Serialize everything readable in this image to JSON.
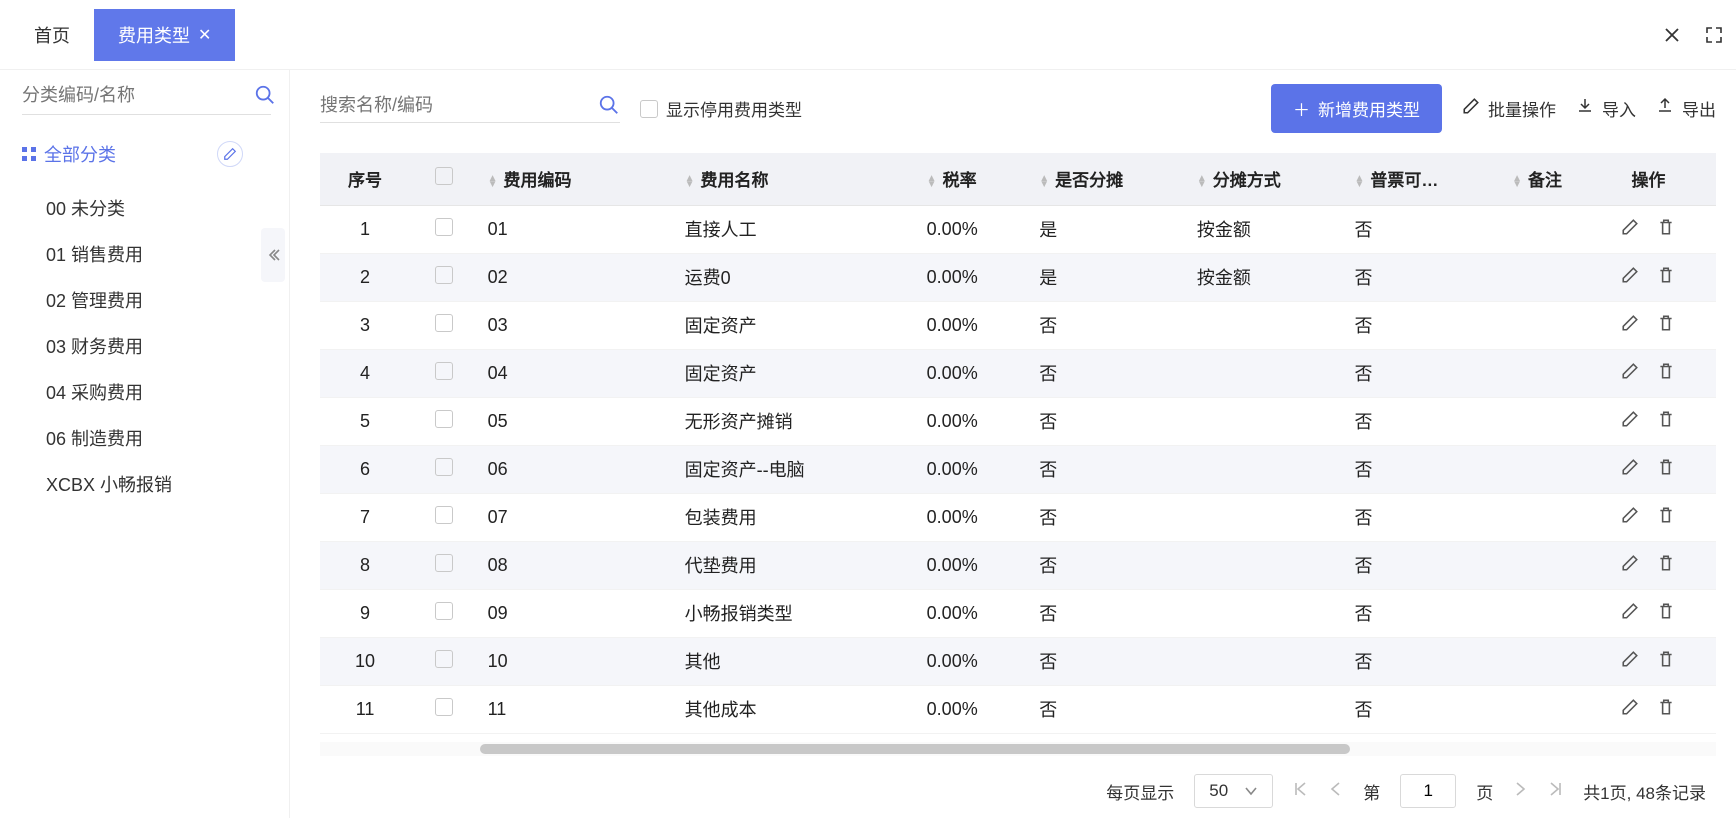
{
  "tabs": {
    "home": "首页",
    "active": "费用类型"
  },
  "sidebar": {
    "search_placeholder": "分类编码/名称",
    "root": "全部分类",
    "items": [
      {
        "label": "00 未分类"
      },
      {
        "label": "01 销售费用"
      },
      {
        "label": "02 管理费用"
      },
      {
        "label": "03 财务费用"
      },
      {
        "label": "04 采购费用"
      },
      {
        "label": "06 制造费用"
      },
      {
        "label": "XCBX 小畅报销"
      }
    ]
  },
  "toolbar": {
    "search_placeholder": "搜索名称/编码",
    "show_disabled": "显示停用费用类型",
    "new_btn": "新增费用类型",
    "batch": "批量操作",
    "import": "导入",
    "export": "导出"
  },
  "table": {
    "cols": {
      "seq": "序号",
      "code": "费用编码",
      "name": "费用名称",
      "rate": "税率",
      "share": "是否分摊",
      "method": "分摊方式",
      "invoice": "普票可…",
      "remark": "备注",
      "op": "操作"
    },
    "rows": [
      {
        "seq": "1",
        "code": "01",
        "name": "直接人工",
        "rate": "0.00%",
        "share": "是",
        "method": "按金额",
        "invoice": "否"
      },
      {
        "seq": "2",
        "code": "02",
        "name": "运费0",
        "rate": "0.00%",
        "share": "是",
        "method": "按金额",
        "invoice": "否"
      },
      {
        "seq": "3",
        "code": "03",
        "name": "固定资产",
        "rate": "0.00%",
        "share": "否",
        "method": "",
        "invoice": "否"
      },
      {
        "seq": "4",
        "code": "04",
        "name": "固定资产",
        "rate": "0.00%",
        "share": "否",
        "method": "",
        "invoice": "否"
      },
      {
        "seq": "5",
        "code": "05",
        "name": "无形资产摊销",
        "rate": "0.00%",
        "share": "否",
        "method": "",
        "invoice": "否"
      },
      {
        "seq": "6",
        "code": "06",
        "name": "固定资产--电脑",
        "rate": "0.00%",
        "share": "否",
        "method": "",
        "invoice": "否"
      },
      {
        "seq": "7",
        "code": "07",
        "name": "包装费用",
        "rate": "0.00%",
        "share": "否",
        "method": "",
        "invoice": "否"
      },
      {
        "seq": "8",
        "code": "08",
        "name": "代垫费用",
        "rate": "0.00%",
        "share": "否",
        "method": "",
        "invoice": "否"
      },
      {
        "seq": "9",
        "code": "09",
        "name": "小畅报销类型",
        "rate": "0.00%",
        "share": "否",
        "method": "",
        "invoice": "否"
      },
      {
        "seq": "10",
        "code": "10",
        "name": "其他",
        "rate": "0.00%",
        "share": "否",
        "method": "",
        "invoice": "否"
      },
      {
        "seq": "11",
        "code": "11",
        "name": "其他成本",
        "rate": "0.00%",
        "share": "否",
        "method": "",
        "invoice": "否"
      }
    ]
  },
  "pager": {
    "per_page_label": "每页显示",
    "per_page_value": "50",
    "page_label_left": "第",
    "page_value": "1",
    "page_label_right": "页",
    "summary": "共1页, 48条记录"
  },
  "colors": {
    "primary": "#5b73e8",
    "tab_active": "#6078ea",
    "header_bg": "#f1f2f6",
    "stripe": "#f5f6fa"
  }
}
